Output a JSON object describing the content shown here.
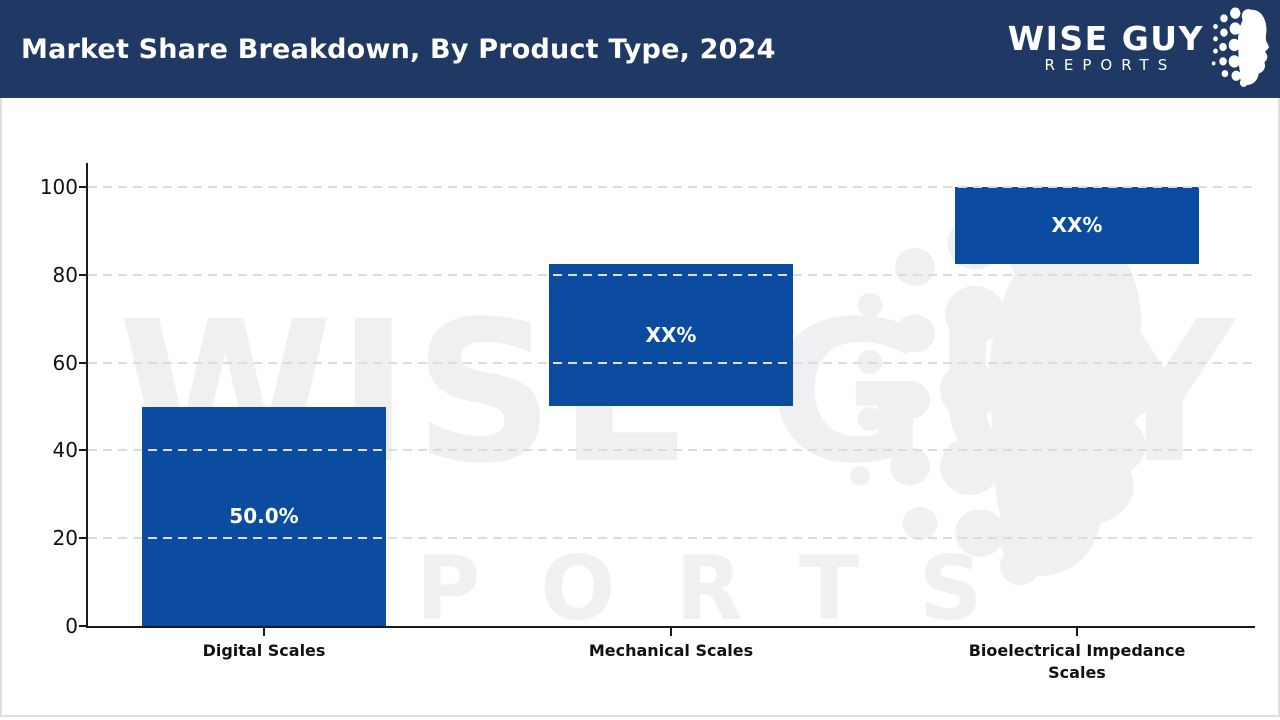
{
  "header": {
    "title": "Market Share Breakdown, By Product Type, 2024",
    "logo": {
      "line1": "WISE GUY",
      "line2": "REPORTS"
    }
  },
  "watermark": {
    "line1": "WISE GUY",
    "line2": "REPORTS"
  },
  "colors": {
    "header_bg": "#1f3864",
    "bar": "#0b4ca1",
    "bar_label": "#ffffff",
    "axis": "#1a1a1a",
    "gridline": "#dcdcdc",
    "tick_label": "#111111",
    "watermark": "#f0f0f2",
    "background": "#ffffff"
  },
  "chart_data": {
    "type": "bar",
    "subtype": "waterfall",
    "title": "Market Share Breakdown, By Product Type, 2024",
    "categories": [
      "Digital Scales",
      "Mechanical Scales",
      "Bioelectrical Impedance Scales"
    ],
    "segments": [
      {
        "category": "Digital Scales",
        "start": 0,
        "end": 50,
        "label": "50.0%"
      },
      {
        "category": "Mechanical Scales",
        "start": 50,
        "end": 82.5,
        "label": "XX%"
      },
      {
        "category": "Bioelectrical Impedance Scales",
        "start": 82.5,
        "end": 100,
        "label": "XX%"
      }
    ],
    "xlabel": "",
    "ylabel": "",
    "ylim": [
      0,
      100
    ],
    "yticks": [
      0,
      20,
      40,
      60,
      80,
      100
    ],
    "grid": true,
    "legend": false
  }
}
